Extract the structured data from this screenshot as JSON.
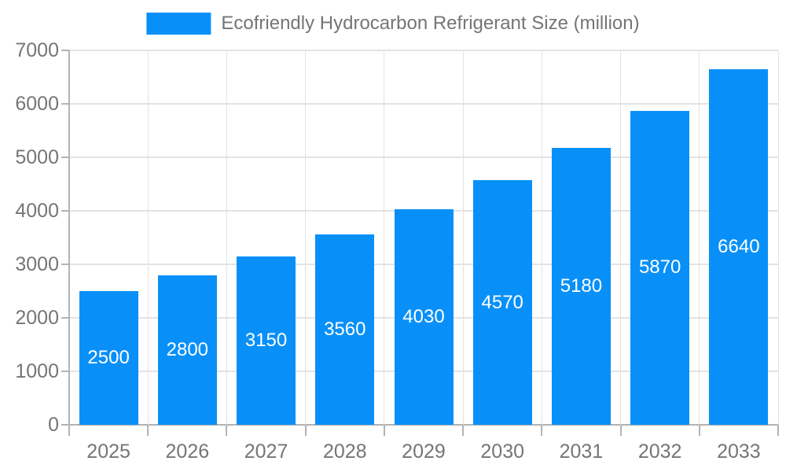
{
  "legend": {
    "label": "Ecofriendly Hydrocarbon Refrigerant Size (million)"
  },
  "chart_data": {
    "type": "bar",
    "title": "Ecofriendly Hydrocarbon Refrigerant Size (million)",
    "categories": [
      "2025",
      "2026",
      "2027",
      "2028",
      "2029",
      "2030",
      "2031",
      "2032",
      "2033"
    ],
    "values": [
      2500,
      2800,
      3150,
      3560,
      4030,
      4570,
      5180,
      5870,
      6640
    ],
    "series": [
      {
        "name": "Ecofriendly Hydrocarbon Refrigerant Size (million)",
        "values": [
          2500,
          2800,
          3150,
          3560,
          4030,
          4570,
          5180,
          5870,
          6640
        ]
      }
    ],
    "xlabel": "",
    "ylabel": "",
    "ylim": [
      0,
      7000
    ],
    "ytick_interval": 1000,
    "ytick_labels": [
      "0",
      "1000",
      "2000",
      "3000",
      "4000",
      "5000",
      "6000",
      "7000"
    ],
    "grid": true,
    "legend_position": "top",
    "value_labels_shown": true,
    "colors": {
      "bar": "#0990f8",
      "value_label": "#ffffff",
      "axis_text": "#757575",
      "legend_text": "#757575",
      "axis_line": "#b3b3b3",
      "gridline": "#e3e3e3"
    }
  }
}
